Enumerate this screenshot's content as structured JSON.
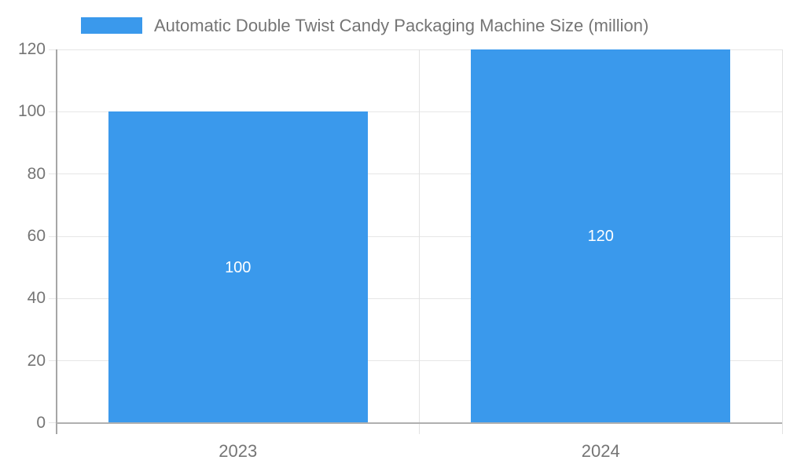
{
  "legend": {
    "label": "Automatic Double Twist Candy Packaging Machine Size (million)"
  },
  "colors": {
    "bar": "#3a99ec",
    "grid_line": "#e6e6e6",
    "separator_line": "#e2e2e2",
    "y_axis_line": "#a6a6a6",
    "x_axis_line": "#b0b0b0",
    "tick_text": "#757575",
    "bar_label_text": "#ffffff",
    "background": "#ffffff"
  },
  "chart_data": {
    "type": "bar",
    "title": "Automatic Double Twist Candy Packaging Machine Size (million)",
    "categories": [
      "2023",
      "2024"
    ],
    "series": [
      {
        "name": "Automatic Double Twist Candy Packaging Machine Size (million)",
        "values": [
          100,
          120
        ]
      }
    ],
    "bar_labels": [
      "100",
      "120"
    ],
    "xlabel": "",
    "ylabel": "",
    "ylim": [
      0,
      120
    ],
    "yticks": [
      0,
      20,
      40,
      60,
      80,
      100,
      120
    ],
    "grid": true,
    "legend_position": "top-left",
    "bar_label_position": "center"
  }
}
